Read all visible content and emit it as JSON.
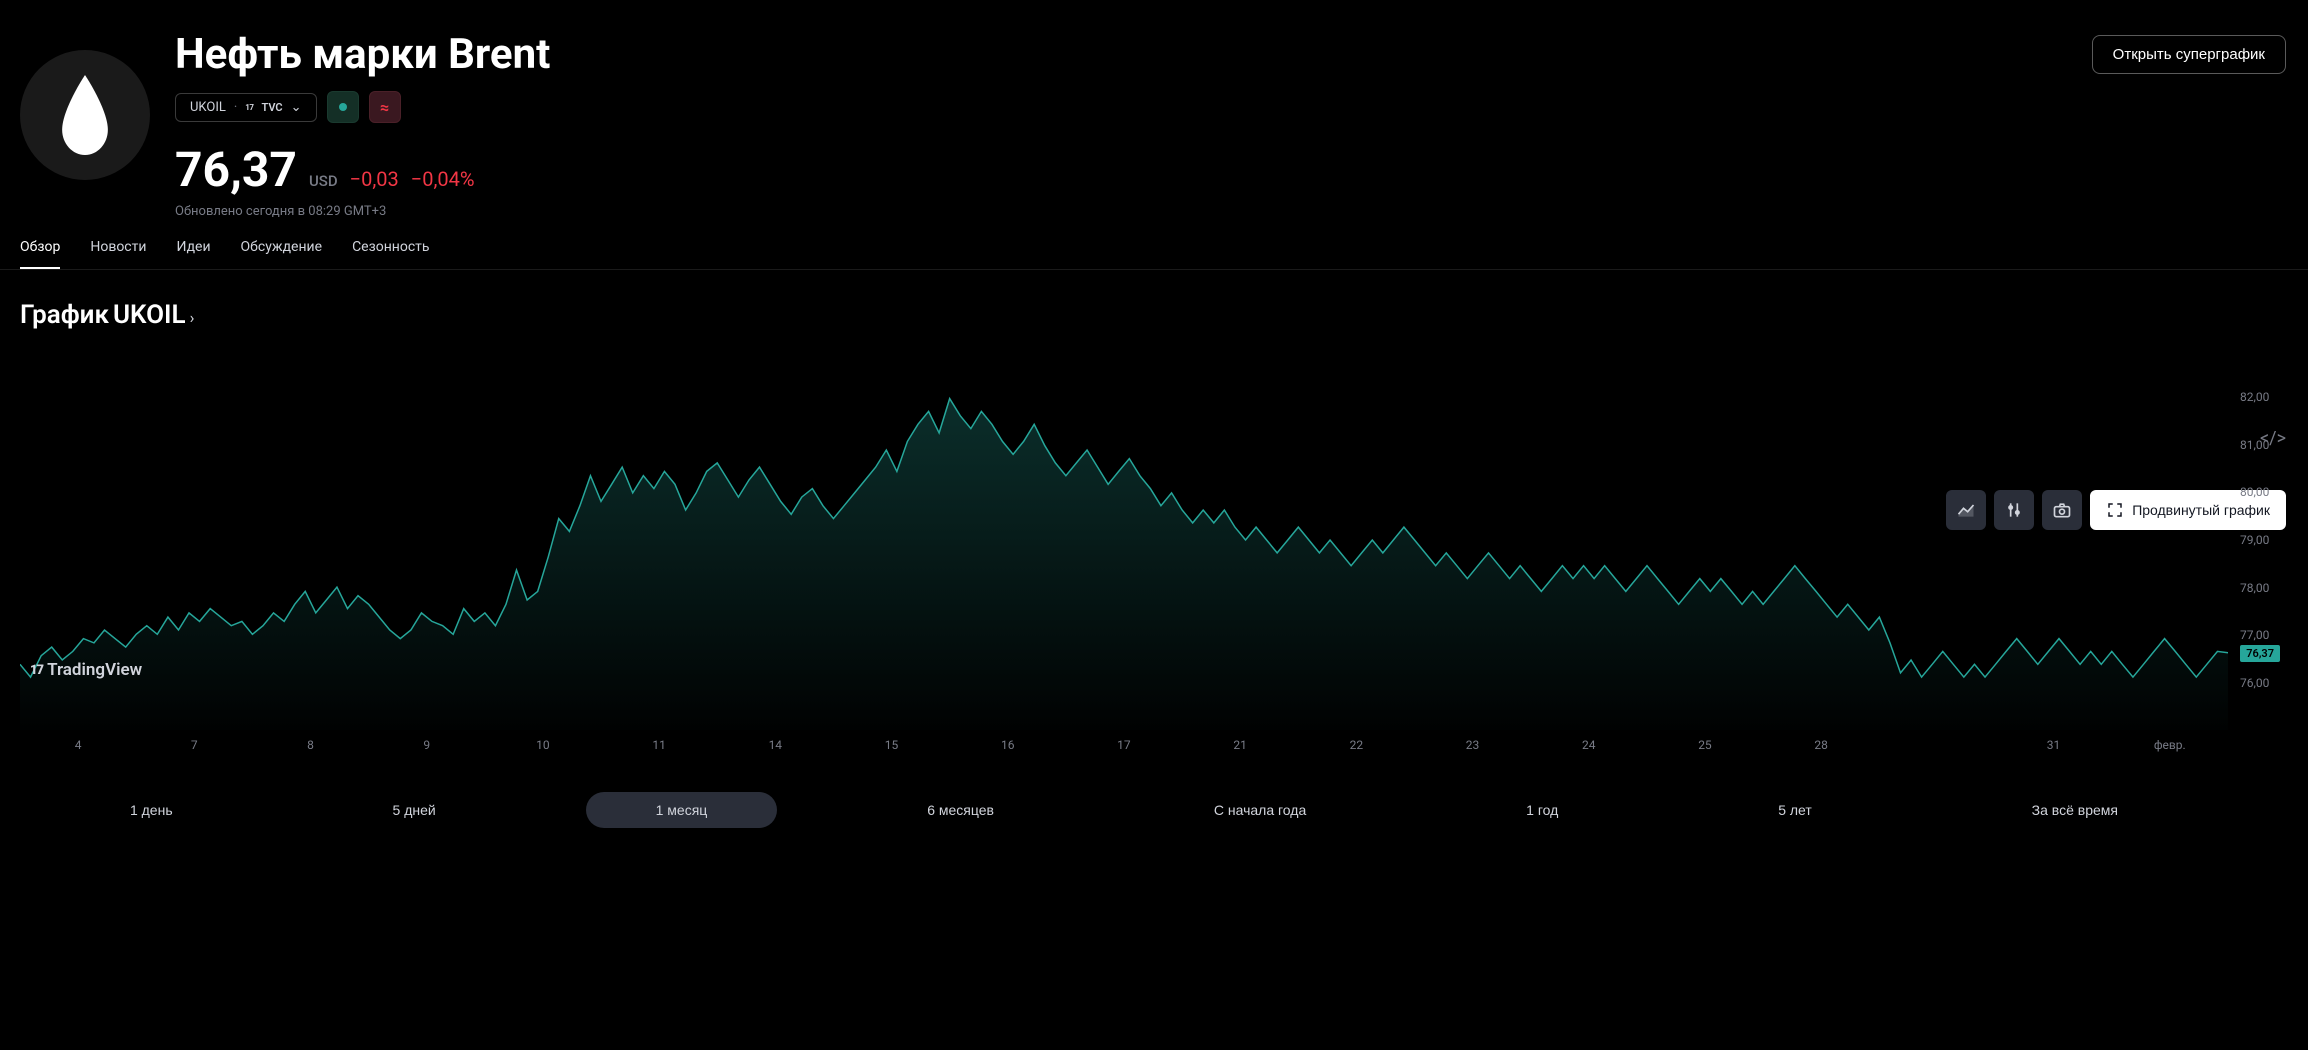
{
  "header": {
    "title": "Нефть марки Brent",
    "ticker": "UKOIL",
    "exchange": "TVC",
    "price": "76,37",
    "currency": "USD",
    "change_abs": "−0,03",
    "change_pct": "−0,04%",
    "change_color": "#f23645",
    "updated": "Обновлено сегодня в 08:29 GMT+3",
    "open_super_label": "Открыть суперграфик"
  },
  "tabs": [
    {
      "label": "Обзор",
      "active": true
    },
    {
      "label": "Новости",
      "active": false
    },
    {
      "label": "Идеи",
      "active": false
    },
    {
      "label": "Обсуждение",
      "active": false
    },
    {
      "label": "Сезонность",
      "active": false
    }
  ],
  "chart_header": {
    "prefix": "График ",
    "ticker": "UKOIL",
    "advanced_label": "Продвинутый график"
  },
  "chart": {
    "type": "area",
    "line_color": "#26a69a",
    "fill_top": "rgba(38,166,154,0.28)",
    "fill_bottom": "rgba(38,166,154,0.01)",
    "background_color": "#000000",
    "ylim": [
      75.5,
      82.5
    ],
    "y_ticks": [
      "82,00",
      "81,00",
      "80,00",
      "79,00",
      "78,00",
      "77,00",
      "76,00"
    ],
    "price_tag": "76,37",
    "x_labels": [
      "4",
      "7",
      "8",
      "9",
      "10",
      "11",
      "14",
      "15",
      "16",
      "17",
      "21",
      "22",
      "23",
      "24",
      "25",
      "28",
      "",
      "31",
      "февр."
    ],
    "watermark": "TradingView",
    "data": [
      76.1,
      75.8,
      76.3,
      76.5,
      76.2,
      76.4,
      76.7,
      76.6,
      76.9,
      76.7,
      76.5,
      76.8,
      77.0,
      76.8,
      77.2,
      76.9,
      77.3,
      77.1,
      77.4,
      77.2,
      77.0,
      77.1,
      76.8,
      77.0,
      77.3,
      77.1,
      77.5,
      77.8,
      77.3,
      77.6,
      77.9,
      77.4,
      77.7,
      77.5,
      77.2,
      76.9,
      76.7,
      76.9,
      77.3,
      77.1,
      77.0,
      76.8,
      77.4,
      77.1,
      77.3,
      77.0,
      77.5,
      78.3,
      77.6,
      77.8,
      78.6,
      79.5,
      79.2,
      79.8,
      80.5,
      79.9,
      80.3,
      80.7,
      80.1,
      80.5,
      80.2,
      80.6,
      80.3,
      79.7,
      80.1,
      80.6,
      80.8,
      80.4,
      80.0,
      80.4,
      80.7,
      80.3,
      79.9,
      79.6,
      80.0,
      80.2,
      79.8,
      79.5,
      79.8,
      80.1,
      80.4,
      80.7,
      81.1,
      80.6,
      81.3,
      81.7,
      82.0,
      81.5,
      82.3,
      81.9,
      81.6,
      82.0,
      81.7,
      81.3,
      81.0,
      81.3,
      81.7,
      81.2,
      80.8,
      80.5,
      80.8,
      81.1,
      80.7,
      80.3,
      80.6,
      80.9,
      80.5,
      80.2,
      79.8,
      80.1,
      79.7,
      79.4,
      79.7,
      79.4,
      79.7,
      79.3,
      79.0,
      79.3,
      79.0,
      78.7,
      79.0,
      79.3,
      79.0,
      78.7,
      79.0,
      78.7,
      78.4,
      78.7,
      79.0,
      78.7,
      79.0,
      79.3,
      79.0,
      78.7,
      78.4,
      78.7,
      78.4,
      78.1,
      78.4,
      78.7,
      78.4,
      78.1,
      78.4,
      78.1,
      77.8,
      78.1,
      78.4,
      78.1,
      78.4,
      78.1,
      78.4,
      78.1,
      77.8,
      78.1,
      78.4,
      78.1,
      77.8,
      77.5,
      77.8,
      78.1,
      77.8,
      78.1,
      77.8,
      77.5,
      77.8,
      77.5,
      77.8,
      78.1,
      78.4,
      78.1,
      77.8,
      77.5,
      77.2,
      77.5,
      77.2,
      76.9,
      77.2,
      76.6,
      75.9,
      76.2,
      75.8,
      76.1,
      76.4,
      76.1,
      75.8,
      76.1,
      75.8,
      76.1,
      76.4,
      76.7,
      76.4,
      76.1,
      76.4,
      76.7,
      76.4,
      76.1,
      76.4,
      76.1,
      76.4,
      76.1,
      75.8,
      76.1,
      76.4,
      76.7,
      76.4,
      76.1,
      75.8,
      76.1,
      76.4,
      76.37
    ]
  },
  "timeframes": [
    {
      "label": "1 день",
      "active": false
    },
    {
      "label": "5 дней",
      "active": false
    },
    {
      "label": "1 месяц",
      "active": true
    },
    {
      "label": "6 месяцев",
      "active": false
    },
    {
      "label": "С начала года",
      "active": false
    },
    {
      "label": "1 год",
      "active": false
    },
    {
      "label": "5 лет",
      "active": false
    },
    {
      "label": "За всё время",
      "active": false
    }
  ]
}
